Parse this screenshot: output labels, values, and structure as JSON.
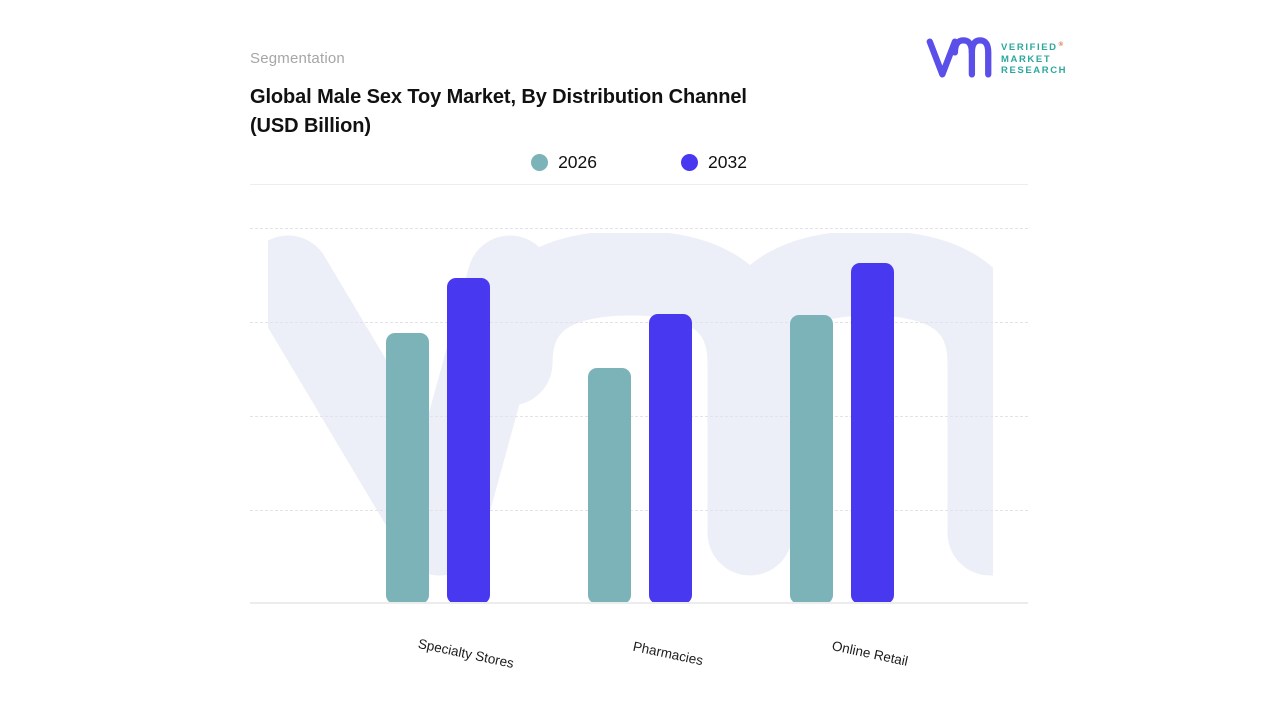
{
  "header": {
    "eyebrow": "Segmentation",
    "title_line1": "Global Male Sex Toy Market, By Distribution Channel",
    "title_line2": "(USD Billion)"
  },
  "logo": {
    "brand_lines": [
      "VERIFIED",
      "MARKET",
      "RESEARCH"
    ],
    "registered_mark": "®",
    "glyph": "vm-monogram",
    "glyph_color": "#5b4fe9",
    "text_color": "#2ba89e",
    "registered_color": "#d4683e"
  },
  "legend": {
    "items": [
      {
        "label": "2026",
        "color": "#7bb3b8"
      },
      {
        "label": "2032",
        "color": "#4838f0"
      }
    ]
  },
  "chart_data": {
    "type": "bar",
    "title": "Global Male Sex Toy Market, By Distribution Channel (USD Billion)",
    "unit": "USD Billion",
    "categories": [
      "Specialty Stores",
      "Pharmacies",
      "Online Retail"
    ],
    "series": [
      {
        "name": "2026",
        "color": "#7bb3b8",
        "values": [
          2.88,
          2.51,
          3.07
        ]
      },
      {
        "name": "2032",
        "color": "#4838f0",
        "values": [
          3.47,
          3.09,
          3.63
        ]
      }
    ],
    "xlabel": "",
    "ylabel": "",
    "ylim": [
      0,
      4
    ],
    "value_axis_labeled": false,
    "scale_note": "y-axis is unlabeled; values estimated in gridline units (1 unit per dashed gridline)",
    "grid": "dashed horizontal, 4 lines",
    "legend_position": "top-center",
    "watermark_color": "#edeff8",
    "background": "#ffffff"
  }
}
